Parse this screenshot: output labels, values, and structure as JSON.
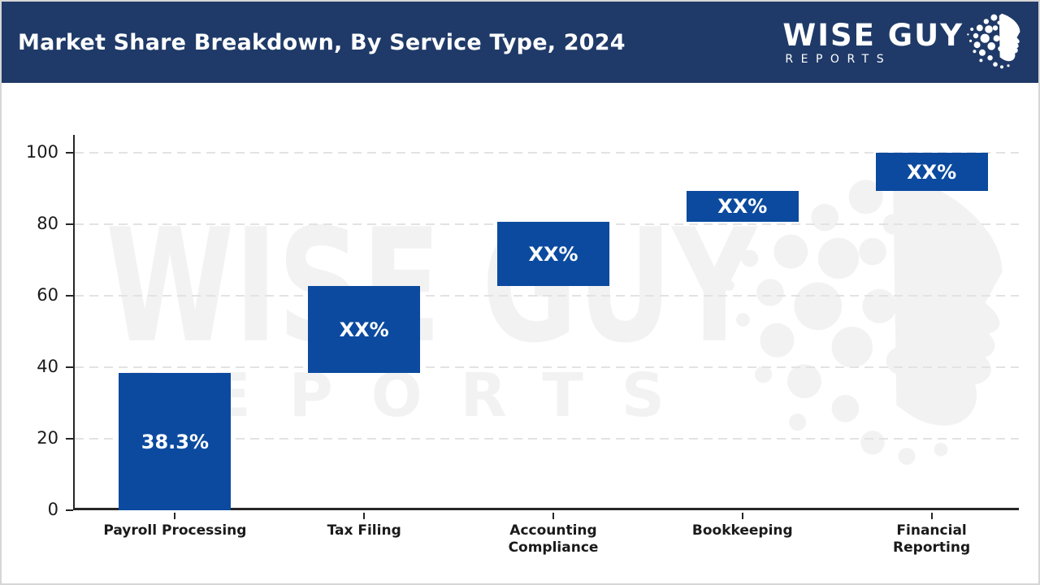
{
  "header": {
    "title": "Market Share Breakdown, By Service Type, 2024",
    "logo": {
      "line1": "WISE GUY",
      "line2": "REPORTS"
    }
  },
  "watermark": {
    "line1": "WISE GUY",
    "line2": "REPORTS"
  },
  "colors": {
    "header_bg": "#1f3a68",
    "bar": "#0b4a9f",
    "bar_label": "#ffffff",
    "axis": "#262626",
    "grid": "#e3e3e4",
    "watermark": "#f2f2f3",
    "figure_border": "#d6d6d6"
  },
  "chart_data": {
    "type": "bar",
    "subtype": "waterfall",
    "title": "Market Share Breakdown, By Service Type, 2024",
    "categories": [
      "Payroll Processing",
      "Tax Filing",
      "Accounting\nCompliance",
      "Bookkeeping",
      "Financial\nReporting"
    ],
    "series": [
      {
        "name": "Market Share",
        "segments": [
          {
            "start": 0,
            "end": 38.3
          },
          {
            "start": 38.3,
            "end": 62.7
          },
          {
            "start": 62.7,
            "end": 80.7
          },
          {
            "start": 80.7,
            "end": 89.3
          },
          {
            "start": 89.3,
            "end": 100
          }
        ]
      }
    ],
    "bar_labels": [
      "38.3%",
      "XX%",
      "XX%",
      "XX%",
      "XX%"
    ],
    "xlabel": "",
    "ylabel": "",
    "yticks": [
      0,
      20,
      40,
      60,
      80,
      100
    ],
    "ylim": [
      0,
      105
    ],
    "grid": "horizontal-dashed",
    "legend": "none",
    "unit": "%"
  }
}
